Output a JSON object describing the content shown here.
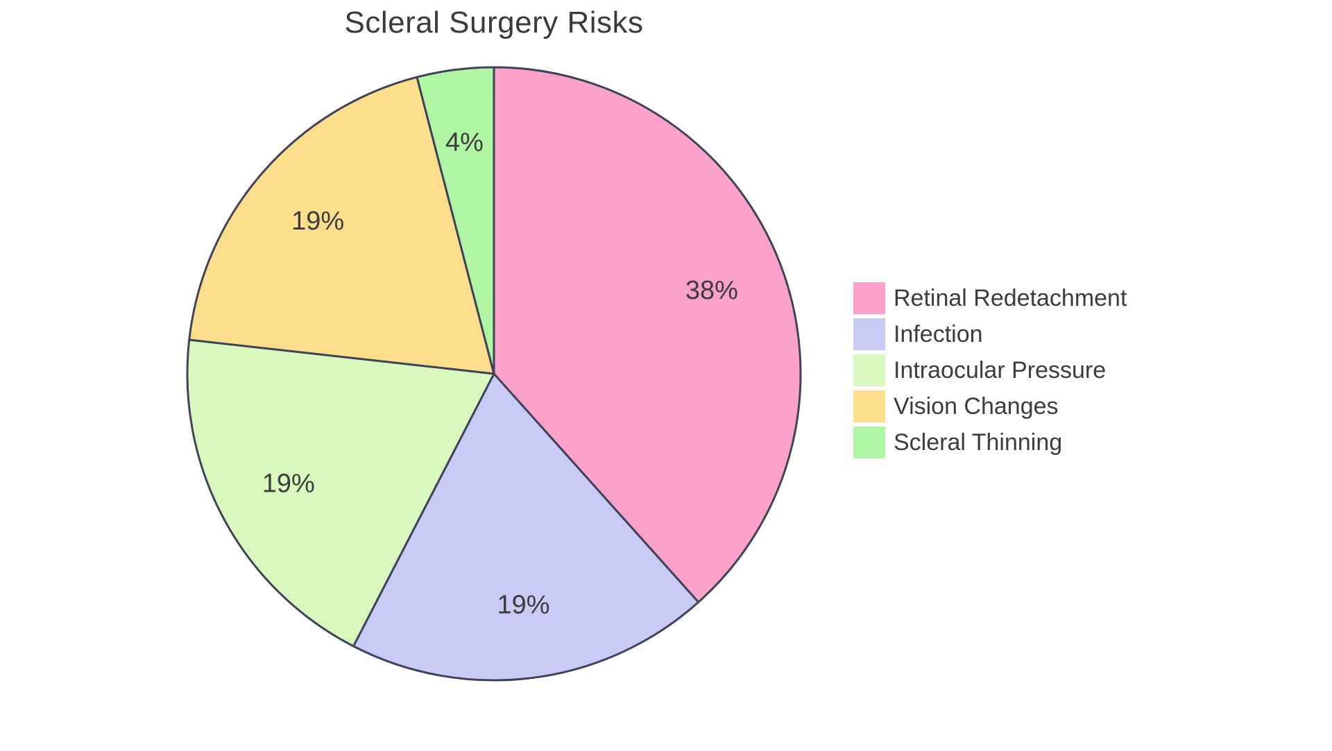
{
  "page": {
    "background_color": "#ffffff"
  },
  "chart_data": {
    "type": "pie",
    "title": "Scleral Surgery Risks",
    "categories": [
      "Retinal Redetachment",
      "Infection",
      "Intraocular Pressure",
      "Vision Changes",
      "Scleral Thinning"
    ],
    "values": [
      38,
      19,
      19,
      19,
      4
    ],
    "value_labels": [
      "38%",
      "19%",
      "19%",
      "19%",
      "4%"
    ],
    "slice_colors": [
      "#FCA2CA",
      "#C9CAF6",
      "#D9F8BD",
      "#FDDE8D",
      "#AFF5A4"
    ],
    "stroke_color": "#3F435A",
    "label_color": "#3C3C3C",
    "title_color": "#3B3B3B",
    "start_position": "top",
    "direction": "clockwise",
    "legend_position": "right",
    "legend_entries": [
      {
        "label": "Retinal Redetachment",
        "color": "#FCA2CA"
      },
      {
        "label": "Infection",
        "color": "#C9CAF6"
      },
      {
        "label": "Intraocular Pressure",
        "color": "#D9F8BD"
      },
      {
        "label": "Vision Changes",
        "color": "#FDDE8D"
      },
      {
        "label": "Scleral Thinning",
        "color": "#AFF5A4"
      }
    ]
  }
}
